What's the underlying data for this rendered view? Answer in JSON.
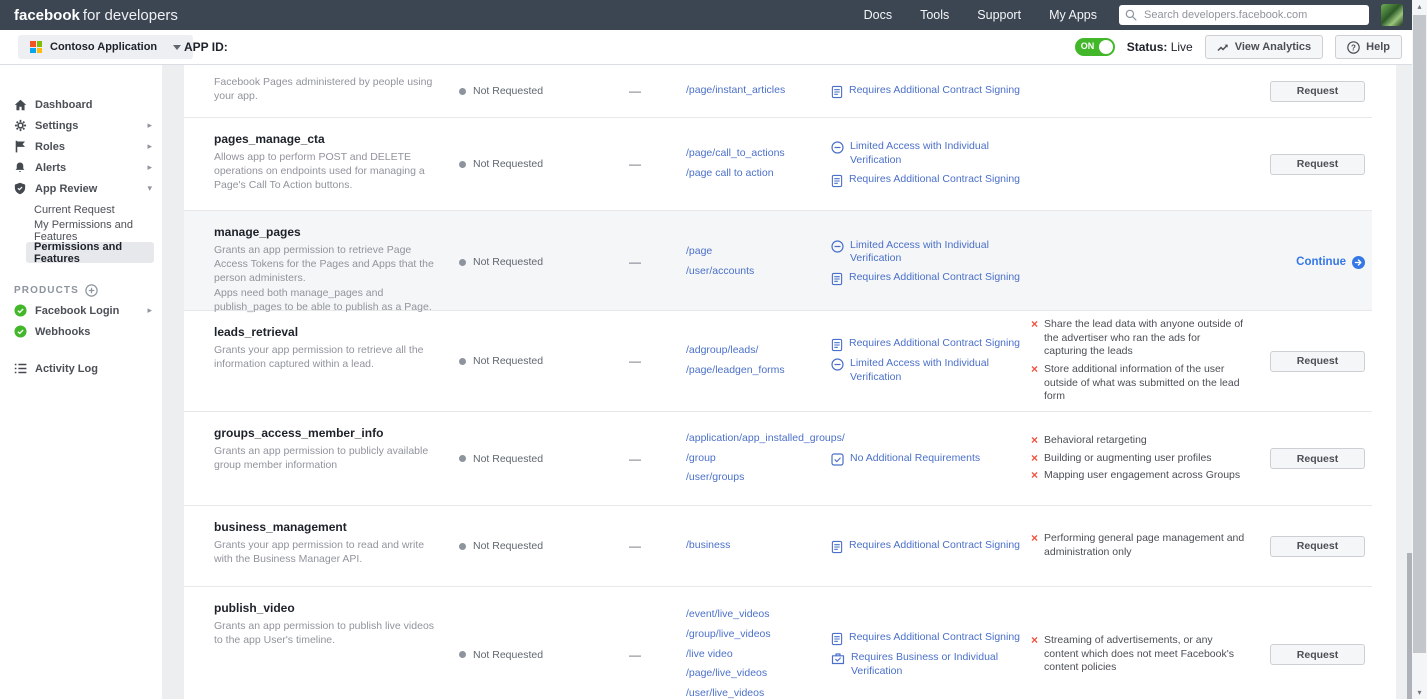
{
  "topbar": {
    "logo_primary": "facebook",
    "logo_secondary": "for developers",
    "nav": [
      "Docs",
      "Tools",
      "Support",
      "My Apps"
    ],
    "search_placeholder": "Search developers.facebook.com"
  },
  "subheader": {
    "app_selector_label": "Contoso Application",
    "app_id_label": "APP ID:",
    "toggle_label": "ON",
    "status_label": "Status:",
    "status_value": "Live",
    "view_analytics_label": "View Analytics",
    "help_label": "Help"
  },
  "sidebar": {
    "items": [
      {
        "label": "Dashboard"
      },
      {
        "label": "Settings"
      },
      {
        "label": "Roles"
      },
      {
        "label": "Alerts"
      },
      {
        "label": "App Review"
      }
    ],
    "app_review_children": [
      {
        "label": "Current Request"
      },
      {
        "label": "My Permissions and Features"
      },
      {
        "label": "Permissions and Features"
      }
    ],
    "products_label": "PRODUCTS",
    "products": [
      {
        "label": "Facebook Login"
      },
      {
        "label": "Webhooks"
      }
    ],
    "activity_log_label": "Activity Log"
  },
  "labels": {
    "dash": "—"
  },
  "permissions": [
    {
      "name": "",
      "partial": true,
      "description": [
        "Facebook Pages administered by people using your app."
      ],
      "status": "Not Requested",
      "endpoints": [
        "/page/instant_articles"
      ],
      "requirements": [
        {
          "icon": "contract",
          "label": "Requires Additional Contract Signing"
        }
      ],
      "restrictions": [],
      "action": {
        "type": "button",
        "label": "Request"
      }
    },
    {
      "name": "pages_manage_cta",
      "description": [
        "Allows app to perform POST and DELETE operations on endpoints used for managing a Page's Call To Action buttons."
      ],
      "status": "Not Requested",
      "endpoints": [
        "/page/call_to_actions",
        "/page call to action"
      ],
      "requirements": [
        {
          "icon": "limited",
          "label": "Limited Access with Individual Verification"
        },
        {
          "icon": "contract",
          "label": "Requires Additional Contract Signing"
        }
      ],
      "restrictions": [],
      "action": {
        "type": "button",
        "label": "Request"
      }
    },
    {
      "name": "manage_pages",
      "highlight": true,
      "description": [
        "Grants an app permission to retrieve Page Access Tokens for the Pages and Apps that the person administers.",
        "Apps need both manage_pages and publish_pages to be able to publish as a Page."
      ],
      "status": "Not Requested",
      "endpoints": [
        "/page",
        "/user/accounts"
      ],
      "requirements": [
        {
          "icon": "limited",
          "label": "Limited Access with Individual Verification"
        },
        {
          "icon": "contract",
          "label": "Requires Additional Contract Signing"
        }
      ],
      "restrictions": [],
      "action": {
        "type": "link",
        "label": "Continue"
      }
    },
    {
      "name": "leads_retrieval",
      "description": [
        "Grants your app permission to retrieve all the information captured within a lead."
      ],
      "status": "Not Requested",
      "endpoints": [
        "/adgroup/leads/",
        "/page/leadgen_forms"
      ],
      "requirements": [
        {
          "icon": "contract",
          "label": "Requires Additional Contract Signing"
        },
        {
          "icon": "limited",
          "label": "Limited Access with Individual Verification"
        }
      ],
      "restrictions": [
        "Share the lead data with anyone outside of the advertiser who ran the ads for capturing the leads",
        "Store additional information of the user outside of what was submitted on the lead form"
      ],
      "action": {
        "type": "button",
        "label": "Request"
      }
    },
    {
      "name": "groups_access_member_info",
      "description": [
        "Grants an app permission to publicly available group member information"
      ],
      "status": "Not Requested",
      "endpoints": [
        "/application/app_installed_groups/",
        "/group",
        "/user/groups"
      ],
      "requirements": [
        {
          "icon": "checkbox",
          "label": "No Additional Requirements"
        }
      ],
      "restrictions": [
        "Behavioral retargeting",
        "Building or augmenting user profiles",
        "Mapping user engagement across Groups"
      ],
      "action": {
        "type": "button",
        "label": "Request"
      }
    },
    {
      "name": "business_management",
      "description": [
        "Grants your app permission to read and write with the Business Manager API."
      ],
      "status": "Not Requested",
      "endpoints": [
        "/business"
      ],
      "requirements": [
        {
          "icon": "contract",
          "label": "Requires Additional Contract Signing"
        }
      ],
      "restrictions": [
        "Performing general page management and administration only"
      ],
      "action": {
        "type": "button",
        "label": "Request"
      }
    },
    {
      "name": "publish_video",
      "description": [
        "Grants an app permission to publish live videos to the app User's timeline."
      ],
      "status": "Not Requested",
      "endpoints": [
        "/event/live_videos",
        "/group/live_videos",
        "/live video",
        "/page/live_videos",
        "/user/live_videos"
      ],
      "requirements": [
        {
          "icon": "contract",
          "label": "Requires Additional Contract Signing"
        },
        {
          "icon": "business",
          "label": "Requires Business or Individual Verification"
        }
      ],
      "restrictions": [
        "Streaming of advertisements, or any content which does not meet Facebook's content policies"
      ],
      "action": {
        "type": "button",
        "label": "Request"
      }
    }
  ],
  "colors": {
    "topbar_bg": "#3c4653",
    "link_blue": "#4b70c9",
    "action_blue": "#3578e5",
    "green": "#42b72a",
    "red_x": "#f5503d"
  }
}
